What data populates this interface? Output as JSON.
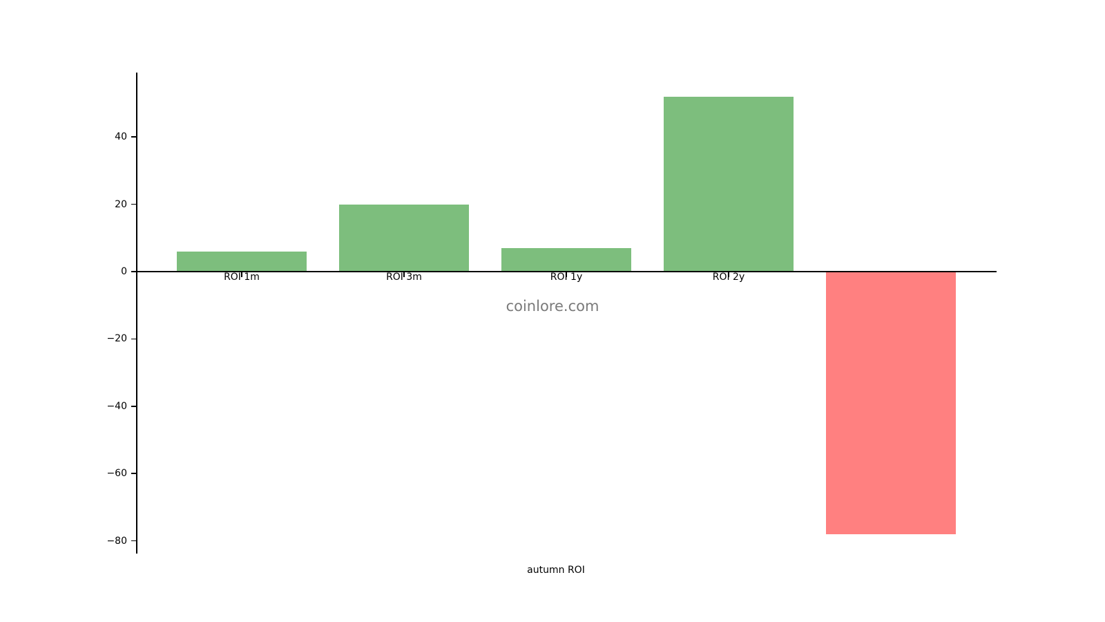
{
  "page": {
    "background": "#ffffff"
  },
  "chart": {
    "watermark": "coinlore.com",
    "xlabel": "autumn ROI"
  },
  "chart_data": {
    "type": "bar",
    "categories": [
      "ROI 1m",
      "ROI 3m",
      "ROI 1y",
      "ROI 2y",
      ""
    ],
    "values": [
      6,
      20,
      7,
      52,
      -78
    ],
    "title": "",
    "xlabel": "autumn ROI",
    "ylabel": "",
    "ylim": [
      -84,
      59
    ],
    "yticks": [
      40,
      20,
      0,
      -20,
      -40,
      -60,
      -80
    ],
    "grid": false,
    "legend_position": "none",
    "watermark": "coinlore.com",
    "colors": {
      "positive_bar": "#7dbe7d",
      "negative_bar": "#ff8080",
      "axis": "#000000",
      "tick_label": "#000000",
      "watermark": "#7a7a7a"
    }
  }
}
